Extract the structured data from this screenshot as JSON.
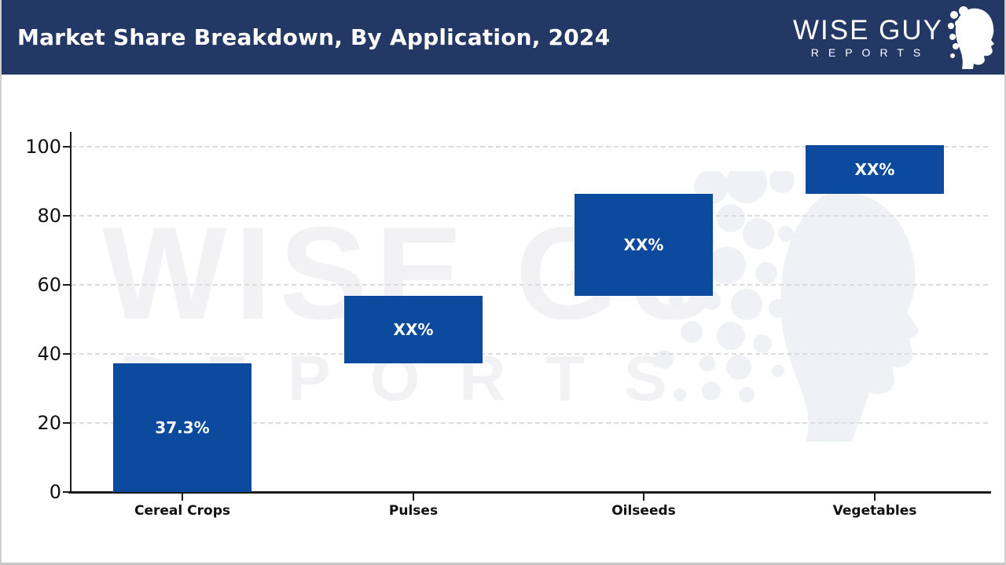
{
  "header": {
    "title": "Market Share Breakdown, By Application, 2024",
    "bg_color": "#233864",
    "logo": {
      "line1": "WISE GUY",
      "line2": "REPORTS"
    }
  },
  "watermark": {
    "line1": "WISE GU",
    "line2": "REPORTS"
  },
  "chart_data": {
    "type": "bar",
    "subtype": "floating-waterfall",
    "title": "Market Share Breakdown, By Application, 2024",
    "categories": [
      "Cereal Crops",
      "Pulses",
      "Oilseeds",
      "Vegetables"
    ],
    "segments": [
      {
        "category": "Cereal Crops",
        "start": 0,
        "end": 37.3,
        "label": "37.3%"
      },
      {
        "category": "Pulses",
        "start": 37.3,
        "end": 56.8,
        "label": "XX%"
      },
      {
        "category": "Oilseeds",
        "start": 56.8,
        "end": 86.4,
        "label": "XX%"
      },
      {
        "category": "Vegetables",
        "start": 86.4,
        "end": 100.5,
        "label": "XX%"
      }
    ],
    "yticks": [
      0,
      20,
      40,
      60,
      80,
      100
    ],
    "ylim": [
      0,
      104
    ],
    "xlabel": "",
    "ylabel": "",
    "grid": "horizontal-dashed",
    "legend": "none",
    "bar_color": "#0C4A9E",
    "bar_label_color": "#FFFFFF",
    "axis_color": "#1A1A1A",
    "gridline_color": "#DCDCDC"
  }
}
